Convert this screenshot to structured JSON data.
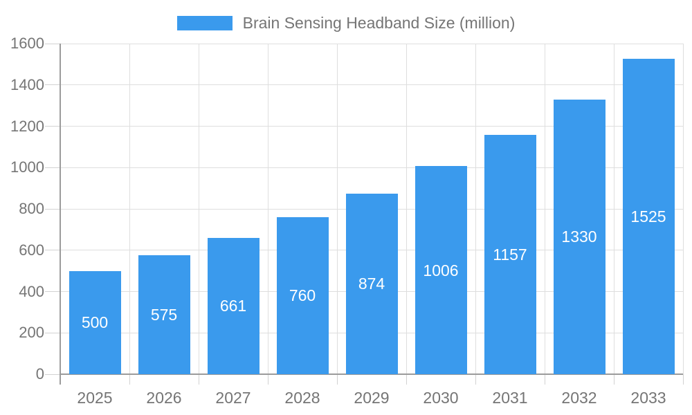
{
  "chart_data": {
    "type": "bar",
    "title": "Brain Sensing Headband Size (million)",
    "legend": {
      "label": "Brain Sensing Headband Size (million)",
      "position": "top"
    },
    "categories": [
      "2025",
      "2026",
      "2027",
      "2028",
      "2029",
      "2030",
      "2031",
      "2032",
      "2033"
    ],
    "values": [
      500,
      575,
      661,
      760,
      874,
      1006,
      1157,
      1330,
      1525
    ],
    "xlabel": "",
    "ylabel": "",
    "ylim": [
      0,
      1600
    ],
    "yticks": [
      0,
      200,
      400,
      600,
      800,
      1000,
      1200,
      1400,
      1600
    ],
    "grid": true,
    "bar_labels_inside": true,
    "colors": {
      "bar": "#3A9AED",
      "bar_label": "#FFFFFF",
      "axis_text": "#757575",
      "axis_line": "#9B9B9B",
      "gridline": "#DEDEDE",
      "tick": "#D2D2D2",
      "background": "#FFFFFF"
    }
  }
}
